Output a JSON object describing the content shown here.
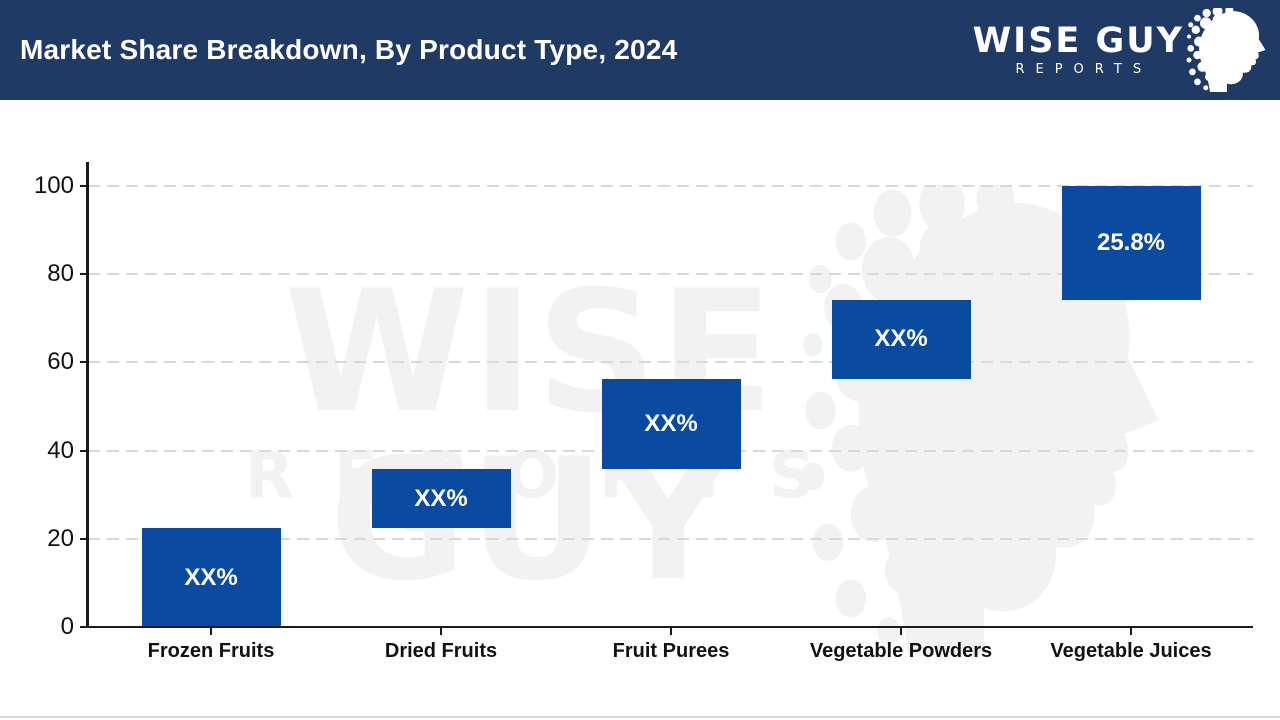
{
  "header": {
    "title": "Market Share Breakdown, By Product Type, 2024",
    "bg_color": "#203A66",
    "brand": {
      "line1": "WISE GUY",
      "line2": "REPORTS",
      "icon": "dotted-head-profile-icon",
      "text_color": "#FFFFFF"
    }
  },
  "watermark": {
    "line1": "WISE GUY",
    "line2": "REPORTS",
    "icon": "dotted-head-profile-icon",
    "color": "#F2F2F2"
  },
  "chart_data": {
    "type": "bar",
    "subtype": "floating-waterfall",
    "title": "Market Share Breakdown, By Product Type, 2024",
    "categories": [
      "Frozen Fruits",
      "Dried Fruits",
      "Fruit Purees",
      "Vegetable Powders",
      "Vegetable Juices"
    ],
    "segments": [
      {
        "category": "Frozen Fruits",
        "start": 0,
        "end": 22.4,
        "label": "XX%"
      },
      {
        "category": "Dried Fruits",
        "start": 22.4,
        "end": 35.8,
        "label": "XX%"
      },
      {
        "category": "Fruit Purees",
        "start": 35.8,
        "end": 56.2,
        "label": "XX%"
      },
      {
        "category": "Vegetable Powders",
        "start": 56.2,
        "end": 74.2,
        "label": "XX%"
      },
      {
        "category": "Vegetable Juices",
        "start": 74.2,
        "end": 100,
        "label": "25.8%"
      }
    ],
    "xlabel": "",
    "ylabel": "",
    "yticks": [
      0,
      20,
      40,
      60,
      80,
      100
    ],
    "ylim": [
      0,
      105
    ],
    "grid": "horizontal-dashed",
    "legend": "none",
    "bar_color": "#0A4AA0",
    "bar_label_color": "#FFFFFF",
    "axis_color": "#1A1A1A",
    "gridline_color": "#D9D9D9"
  }
}
